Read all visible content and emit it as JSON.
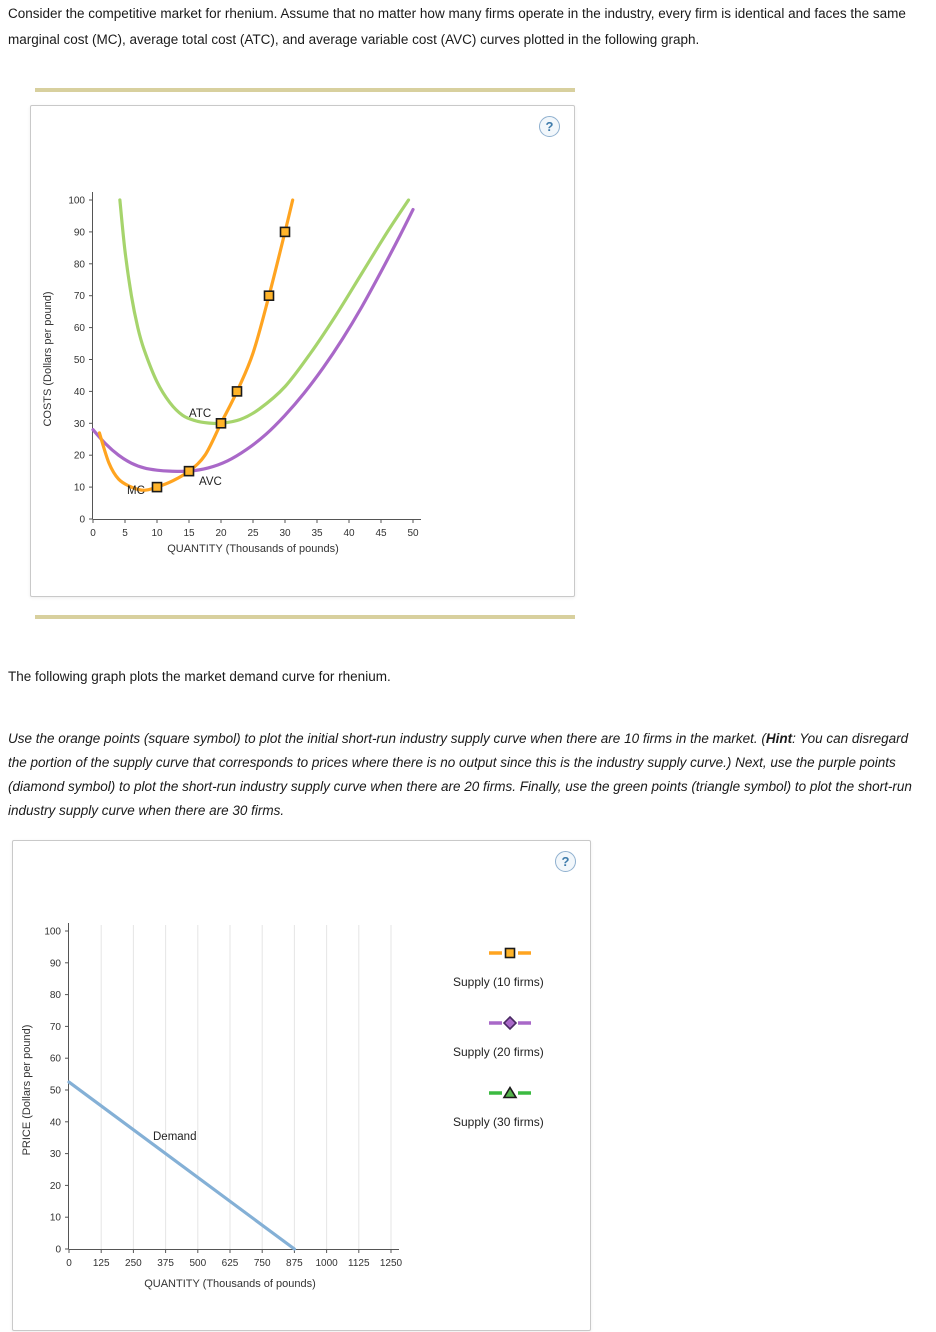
{
  "page": {
    "intro_paragraph": "Consider the competitive market for rhenium. Assume that no matter how many firms operate in the industry, every firm is identical and faces the same marginal cost (MC), average total cost (ATC), and average variable cost (AVC) curves plotted in the following graph.",
    "middle_paragraph": "The following graph plots the market demand curve for rhenium.",
    "instructions": {
      "part1": "Use the orange points (square symbol) to plot the initial short-run industry supply curve when there are 10 firms in the market. (",
      "hint_label": "Hint",
      "part2": ": You can disregard the portion of the supply curve that corresponds to prices where there is no output since this is the industry supply curve.) Next, use the purple points (diamond symbol) to plot the short-run industry supply curve when there are 20 firms. Finally, use the green points (triangle symbol) to plot the short-run industry supply curve when there are 30 firms.",
      "help_icon": "?"
    }
  },
  "chart_data": [
    {
      "type": "line",
      "title": "Firm cost curves",
      "xlabel": "QUANTITY (Thousands of pounds)",
      "ylabel": "COSTS (Dollars per pound)",
      "xlim": [
        0,
        50
      ],
      "xtick": 5,
      "ylim": [
        0,
        100
      ],
      "ytick": 10,
      "grid": "none",
      "series": [
        {
          "name": "ATC",
          "color": "#a6d46c",
          "points": [
            [
              4.2,
              100
            ],
            [
              5,
              84
            ],
            [
              6,
              70
            ],
            [
              7,
              60
            ],
            [
              8,
              53
            ],
            [
              10,
              43
            ],
            [
              12,
              36.5
            ],
            [
              14,
              32.5
            ],
            [
              16,
              30.8
            ],
            [
              18,
              30.1
            ],
            [
              20,
              30
            ],
            [
              23,
              31.2
            ],
            [
              26,
              34.5
            ],
            [
              30,
              41.5
            ],
            [
              34,
              52
            ],
            [
              38,
              64
            ],
            [
              42,
              77
            ],
            [
              46,
              90
            ],
            [
              49.3,
              100
            ]
          ]
        },
        {
          "name": "AVC",
          "color": "#a968c8",
          "points": [
            [
              0,
              28
            ],
            [
              2,
              23.5
            ],
            [
              4,
              20
            ],
            [
              6,
              17.5
            ],
            [
              8,
              16
            ],
            [
              10,
              15.3
            ],
            [
              12,
              15
            ],
            [
              15,
              15
            ],
            [
              18,
              16
            ],
            [
              21,
              18.2
            ],
            [
              24,
              21.8
            ],
            [
              27,
              26.5
            ],
            [
              30,
              32.5
            ],
            [
              33,
              39.5
            ],
            [
              36,
              47.5
            ],
            [
              39,
              56.5
            ],
            [
              42,
              66.5
            ],
            [
              45,
              77.5
            ],
            [
              48,
              89
            ],
            [
              50,
              97
            ]
          ]
        },
        {
          "name": "MC",
          "color": "#ffa420",
          "marker": "square",
          "marker_fill": "#ffb42a",
          "points": [
            [
              1,
              27
            ],
            [
              2.5,
              17.5
            ],
            [
              4,
              12.5
            ],
            [
              6,
              10
            ],
            [
              8,
              9
            ],
            [
              10,
              10
            ],
            [
              12.5,
              12
            ],
            [
              15,
              15
            ],
            [
              17.5,
              20
            ],
            [
              20,
              30
            ],
            [
              22.5,
              40
            ],
            [
              25,
              52
            ],
            [
              27.5,
              70
            ],
            [
              30,
              90
            ],
            [
              31.2,
              100
            ]
          ],
          "markers": [
            [
              10,
              10
            ],
            [
              15,
              15
            ],
            [
              20,
              30
            ],
            [
              22.5,
              40
            ],
            [
              27.5,
              70
            ],
            [
              30,
              90
            ]
          ]
        }
      ]
    },
    {
      "type": "line",
      "title": "Market demand for rhenium",
      "xlabel": "QUANTITY (Thousands of pounds)",
      "ylabel": "PRICE (Dollars per pound)",
      "xlim": [
        0,
        1250
      ],
      "xtick": 125,
      "ylim": [
        0,
        100
      ],
      "ytick": 10,
      "grid": "vertical",
      "series": [
        {
          "name": "Demand",
          "color": "#84b0d6",
          "points": [
            [
              0,
              52.5
            ],
            [
              875,
              0
            ]
          ]
        }
      ],
      "legend": [
        {
          "label": "Supply (10 firms)",
          "marker": "square",
          "color": "#ffa420",
          "fill": "#ffb42a",
          "stroke": "#1a1a1a"
        },
        {
          "label": "Supply (20 firms)",
          "marker": "diamond",
          "color": "#a968c8",
          "fill": "#a968c8",
          "stroke": "#4a2a63"
        },
        {
          "label": "Supply (30 firms)",
          "marker": "triangle",
          "color": "#3bba41",
          "fill": "#55b34c",
          "stroke": "#1a1a1a"
        }
      ]
    }
  ]
}
